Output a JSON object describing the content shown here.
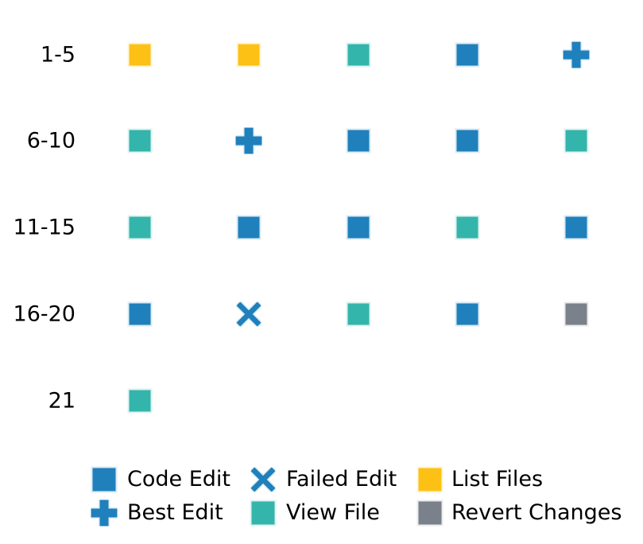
{
  "chart_data": {
    "type": "scatter",
    "title": "",
    "xlabel": "",
    "ylabel": "",
    "grid": false,
    "background_color": "#FFFFFF",
    "text_color": "#000000",
    "row_axis_labels": [
      "1-5",
      "6-10",
      "11-15",
      "16-20",
      "21"
    ],
    "rows": [
      {
        "label": "1-5",
        "actions": [
          "list_files",
          "list_files",
          "view_file",
          "code_edit",
          "best_edit"
        ]
      },
      {
        "label": "6-10",
        "actions": [
          "view_file",
          "best_edit",
          "code_edit",
          "code_edit",
          "view_file"
        ]
      },
      {
        "label": "11-15",
        "actions": [
          "view_file",
          "code_edit",
          "code_edit",
          "view_file",
          "code_edit"
        ]
      },
      {
        "label": "16-20",
        "actions": [
          "code_edit",
          "failed_edit",
          "view_file",
          "code_edit",
          "revert_changes"
        ]
      },
      {
        "label": "21",
        "actions": [
          "view_file"
        ]
      }
    ],
    "markers": {
      "code_edit": {
        "label": "Code Edit",
        "shape": "square",
        "color": "#1F80BC"
      },
      "failed_edit": {
        "label": "Failed Edit",
        "shape": "x",
        "color": "#1F80BC"
      },
      "list_files": {
        "label": "List Files",
        "shape": "square",
        "color": "#FDC116"
      },
      "best_edit": {
        "label": "Best Edit",
        "shape": "plus",
        "color": "#1F80BC"
      },
      "view_file": {
        "label": "View File",
        "shape": "square",
        "color": "#34B5AB"
      },
      "revert_changes": {
        "label": "Revert Changes",
        "shape": "square",
        "color": "#7A818B"
      }
    },
    "legend": {
      "position": "bottom",
      "columns": 3,
      "rows": 2,
      "order": [
        "code_edit",
        "failed_edit",
        "list_files",
        "best_edit",
        "view_file",
        "revert_changes"
      ]
    }
  }
}
